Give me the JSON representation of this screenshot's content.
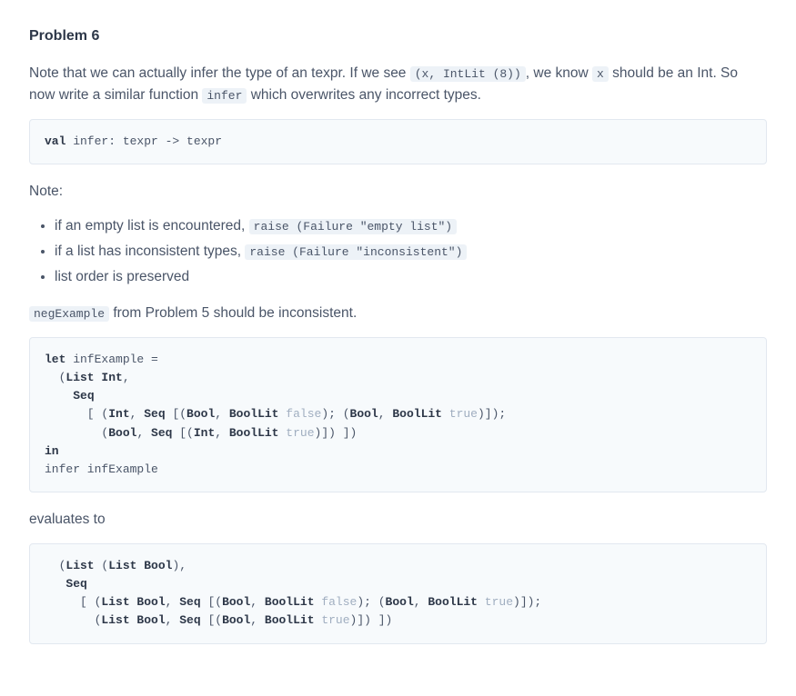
{
  "title": "Problem 6",
  "intro": {
    "p1_a": "Note that we can actually infer the type of an texpr. If we see ",
    "p1_code1": "(x, IntLit (8))",
    "p1_b": ", we know ",
    "p1_code2": "x",
    "p1_c": " should be an Int. So now write a similar function ",
    "p1_code3": "infer",
    "p1_d": " which overwrites any incorrect types."
  },
  "signature": {
    "kw": "val",
    "rest": " infer: texpr -> texpr"
  },
  "note_label": "Note:",
  "notes": {
    "n1_a": "if an empty list is encountered, ",
    "n1_code": "raise (Failure \"empty list\")",
    "n2_a": "if a list has inconsistent types, ",
    "n2_code": "raise (Failure \"inconsistent\")",
    "n3": "list order is preserved"
  },
  "neg_line": {
    "code": "negExample",
    "rest": " from Problem 5 should be inconsistent."
  },
  "example_code": {
    "l1_kw": "let",
    "l1_rest": " infExample =",
    "l2a": "  (",
    "l2_kw": "List Int",
    "l2b": ",",
    "l3a": "    ",
    "l3_kw": "Seq",
    "l4a": "      [ (",
    "l4_kw1": "Int",
    "l4b": ", ",
    "l4_kw2": "Seq",
    "l4c": " [(",
    "l4_kw3": "Bool",
    "l4d": ", ",
    "l4_kw4": "BoolLit",
    "l4e": " ",
    "l4_false": "false",
    "l4f": "); (",
    "l4_kw5": "Bool",
    "l4g": ", ",
    "l4_kw6": "BoolLit",
    "l4h": " ",
    "l4_true": "true",
    "l4i": ")]);",
    "l5a": "        (",
    "l5_kw1": "Bool",
    "l5b": ", ",
    "l5_kw2": "Seq",
    "l5c": " [(",
    "l5_kw3": "Int",
    "l5d": ", ",
    "l5_kw4": "BoolLit",
    "l5e": " ",
    "l5_true": "true",
    "l5f": ")]) ])",
    "l6_kw": "in",
    "l7": "infer infExample"
  },
  "evaluates_label": "evaluates to",
  "result_code": {
    "l1a": "  (",
    "l1_kw1": "List",
    "l1b": " (",
    "l1_kw2": "List Bool",
    "l1c": "),",
    "l2a": "   ",
    "l2_kw": "Seq",
    "l3a": "     [ (",
    "l3_kw1": "List Bool",
    "l3b": ", ",
    "l3_kw2": "Seq",
    "l3c": " [(",
    "l3_kw3": "Bool",
    "l3d": ", ",
    "l3_kw4": "BoolLit",
    "l3e": " ",
    "l3_false": "false",
    "l3f": "); (",
    "l3_kw5": "Bool",
    "l3g": ", ",
    "l3_kw6": "BoolLit",
    "l3h": " ",
    "l3_true": "true",
    "l3i": ")]);",
    "l4a": "       (",
    "l4_kw1": "List Bool",
    "l4b": ", ",
    "l4_kw2": "Seq",
    "l4c": " [(",
    "l4_kw3": "Bool",
    "l4d": ", ",
    "l4_kw4": "BoolLit",
    "l4e": " ",
    "l4_true": "true",
    "l4f": ")]) ])"
  },
  "colors": {
    "text": "#4a5568",
    "heading": "#2d3748",
    "code_bg": "#f7fafc",
    "code_border": "#e2e8f0",
    "inline_bg": "#edf2f7",
    "muted": "#a0aec0"
  }
}
